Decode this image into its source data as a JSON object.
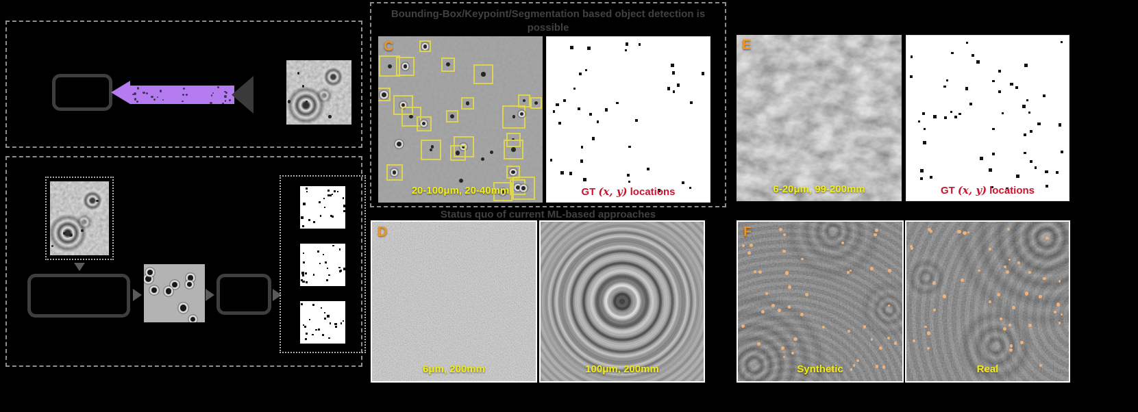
{
  "figure": {
    "headings": {
      "detection_possible": "Bounding-Box/Keypoint/Segmentation based object detection is possible",
      "status_quo": "Status quo of current ML-based approaches"
    },
    "panel_c": {
      "label": "C",
      "caption": "20-100μm, 20-40mm",
      "gt": {
        "prefix": "GT",
        "math": "(x, y)",
        "suffix": "locations"
      }
    },
    "panel_d": {
      "label": "D",
      "caption_left": "6μm, 200mm",
      "caption_right": "100μm, 200mm"
    },
    "panel_e": {
      "label": "E",
      "caption": "6-20μm, 99-200mm",
      "gt": {
        "prefix": "GT",
        "math": "(x, y)",
        "suffix": "locations"
      }
    },
    "panel_f": {
      "label": "F",
      "caption_left": "Synthetic",
      "caption_right": "Real"
    },
    "colors": {
      "background": "#000000",
      "panel_label_orange": "#f0941e",
      "caption_yellow": "#f2ee11",
      "gt_red": "#c8142e",
      "heading_gray": "#414141",
      "beam_purple": "#b57bf0",
      "bbox_yellow": "#ddd64a",
      "particle_dot_orange": "#eeb37c"
    }
  }
}
